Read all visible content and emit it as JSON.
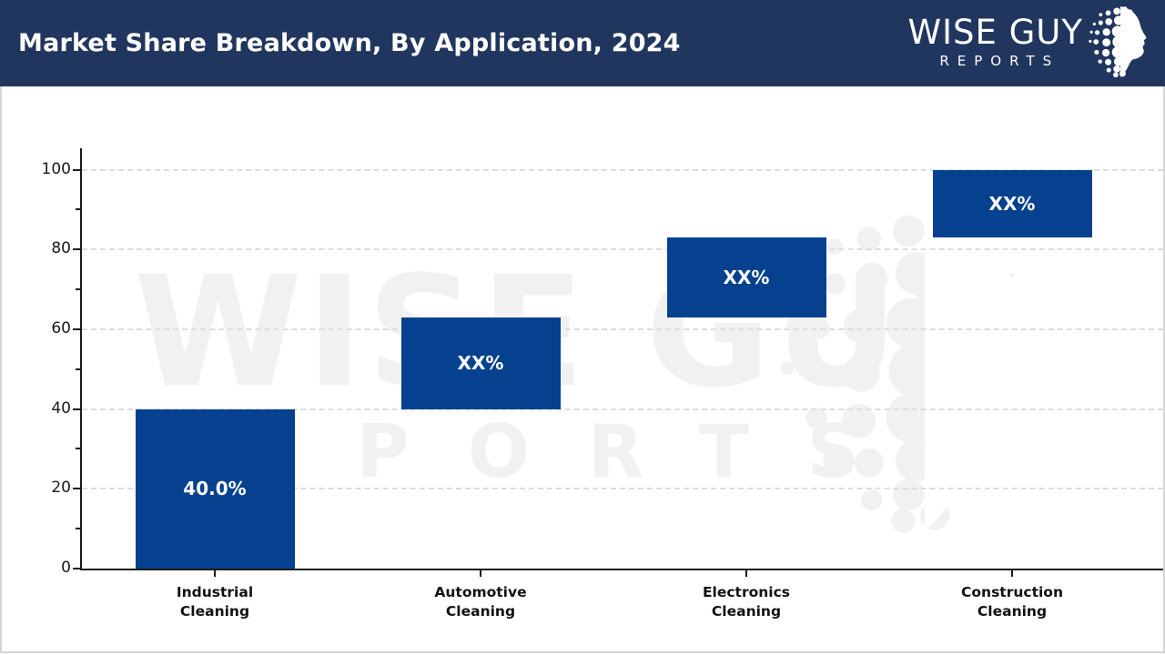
{
  "header": {
    "title": "Market Share Breakdown, By Application, 2024",
    "brand": {
      "wordmark": "WISE GUY",
      "sub_wordmark": "REPORTS"
    }
  },
  "watermark": {
    "wordmark": "WISE GUY",
    "sub_wordmark": "REPORTS"
  },
  "chart_data": {
    "type": "bar",
    "subtype": "floating-segment-waterfall",
    "title": "Market Share Breakdown, By Application, 2024",
    "categories": [
      [
        "Industrial",
        "Cleaning"
      ],
      [
        "Automotive",
        "Cleaning"
      ],
      [
        "Electronics",
        "Cleaning"
      ],
      [
        "Construction",
        "Cleaning"
      ]
    ],
    "bars": [
      {
        "category": "Industrial Cleaning",
        "start": 0,
        "end": 40,
        "label": "40.0%"
      },
      {
        "category": "Automotive Cleaning",
        "start": 40,
        "end": 63,
        "label": "XX%"
      },
      {
        "category": "Electronics Cleaning",
        "start": 63,
        "end": 83,
        "label": "XX%"
      },
      {
        "category": "Construction Cleaning",
        "start": 83,
        "end": 100,
        "label": "XX%"
      }
    ],
    "xlabel": "",
    "ylabel": "",
    "ylim": [
      0,
      100
    ],
    "yticks": [
      0,
      20,
      40,
      60,
      80,
      100
    ],
    "minor_yticks": [
      10,
      30,
      50,
      70,
      90
    ],
    "grid": "horizontal-dashed",
    "legend": "none"
  },
  "colors": {
    "header_bg": "#21365E",
    "bar_fill": "#06418F",
    "bar_label": "#FFFFFF",
    "axis": "#1A1A1A",
    "gridline": "#DCDCDC",
    "watermark": "#F1F1F2",
    "page_bg": "#FFFFFF",
    "border": "#D6D6D6",
    "text": "#000000"
  }
}
